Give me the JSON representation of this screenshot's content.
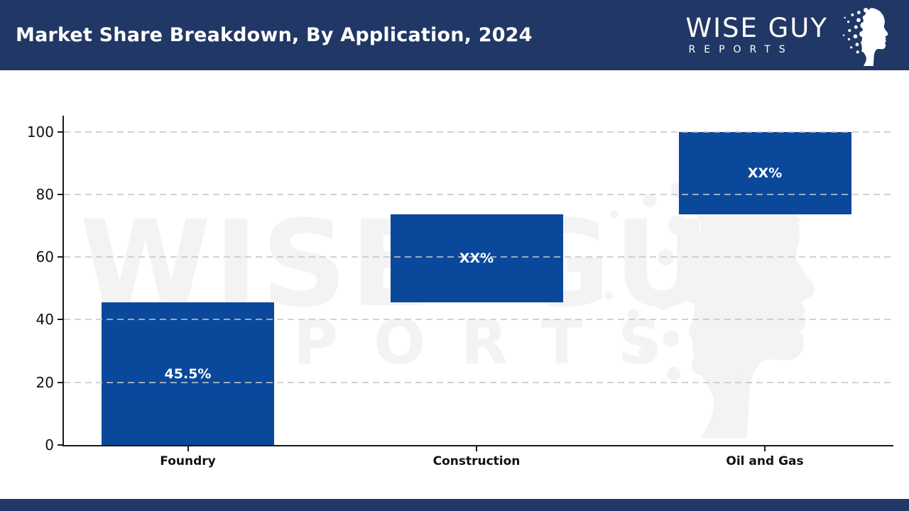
{
  "header": {
    "title": "Market Share Breakdown, By Application, 2024"
  },
  "logo": {
    "line1": "WISE GUY",
    "line2": "REPORTS"
  },
  "watermark": {
    "line1": "WISE GUY",
    "line2": "REPORTS"
  },
  "theme": {
    "header_bg": "#213765",
    "footer_bg": "#213765",
    "bar_color": "#0a489b",
    "bar_label_color": "#ffffff",
    "axis_color": "#1a1a1a",
    "watermark_color": "#f3f3f3"
  },
  "chart_data": {
    "type": "bar",
    "variant": "stacked-waterfall",
    "title": "Market Share Breakdown, By Application, 2024",
    "categories": [
      "Foundry",
      "Construction",
      "Oil and Gas"
    ],
    "segments": [
      {
        "category": "Foundry",
        "start": 0,
        "end": 45.5,
        "label": "45.5%"
      },
      {
        "category": "Construction",
        "start": 45.5,
        "end": 73.5,
        "label": "XX%"
      },
      {
        "category": "Oil and Gas",
        "start": 73.5,
        "end": 100,
        "label": "XX%"
      }
    ],
    "y_ticks": [
      0,
      20,
      40,
      60,
      80,
      100
    ],
    "ylim": [
      0,
      105
    ],
    "xlabel": "",
    "ylabel": "",
    "grid": "dashed-horizontal",
    "legend": "none"
  }
}
